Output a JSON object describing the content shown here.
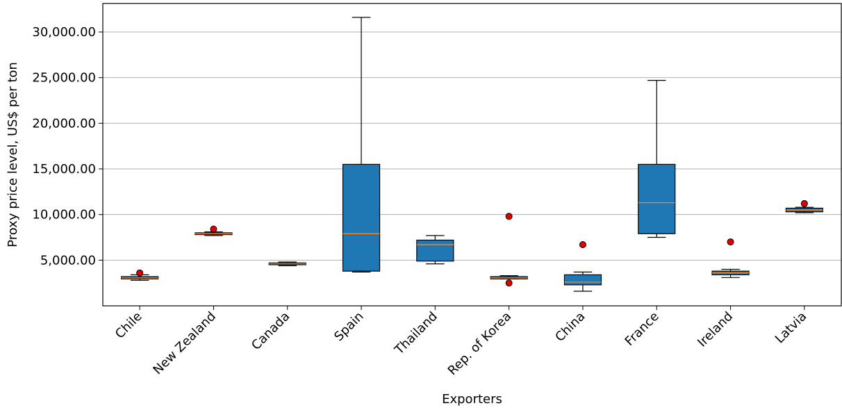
{
  "chart_data": {
    "type": "box",
    "xlabel": "Exporters",
    "ylabel": "Proxy price level, US$ per ton",
    "ylim": [
      0,
      33000
    ],
    "yticks": [
      5000,
      10000,
      15000,
      20000,
      25000,
      30000
    ],
    "ytick_labels": [
      "5,000.00",
      "10,000.00",
      "15,000.00",
      "20,000.00",
      "25,000.00",
      "30,000.00"
    ],
    "grid": "horizontal",
    "box_color": "#1f77b4",
    "median_color": "#ff7f0e",
    "outlier_color": "#e00000",
    "categories": [
      "Chile",
      "New Zealand",
      "Canada",
      "Spain",
      "Thailand",
      "Rep. of Korea",
      "China",
      "France",
      "Ireland",
      "Latvia"
    ],
    "boxes": [
      {
        "name": "Chile",
        "whislo": 2800,
        "q1": 2950,
        "med": 3050,
        "q3": 3200,
        "whishi": 3400,
        "fliers": [
          3600
        ]
      },
      {
        "name": "New Zealand",
        "whislo": 7700,
        "q1": 7800,
        "med": 7900,
        "q3": 8000,
        "whishi": 8100,
        "fliers": [
          8400
        ]
      },
      {
        "name": "Canada",
        "whislo": 4400,
        "q1": 4500,
        "med": 4600,
        "q3": 4700,
        "whishi": 4800,
        "fliers": []
      },
      {
        "name": "Spain",
        "whislo": 3700,
        "q1": 3800,
        "med": 7900,
        "q3": 15500,
        "whishi": 31600,
        "fliers": []
      },
      {
        "name": "Thailand",
        "whislo": 4600,
        "q1": 4900,
        "med": 6700,
        "q3": 7200,
        "whishi": 7700,
        "fliers": []
      },
      {
        "name": "Rep. of Korea",
        "whislo": 2950,
        "q1": 2950,
        "med": 3050,
        "q3": 3200,
        "whishi": 3300,
        "fliers": [
          9800,
          2500
        ]
      },
      {
        "name": "China",
        "whislo": 1600,
        "q1": 2300,
        "med": 2600,
        "q3": 3400,
        "whishi": 3700,
        "fliers": [
          6700
        ]
      },
      {
        "name": "France",
        "whislo": 7500,
        "q1": 7900,
        "med": 11300,
        "q3": 15500,
        "whishi": 24700,
        "fliers": []
      },
      {
        "name": "Ireland",
        "whislo": 3100,
        "q1": 3400,
        "med": 3600,
        "q3": 3800,
        "whishi": 4000,
        "fliers": [
          7000
        ]
      },
      {
        "name": "Latvia",
        "whislo": 10200,
        "q1": 10300,
        "med": 10500,
        "q3": 10700,
        "whishi": 10800,
        "fliers": [
          11200
        ]
      }
    ]
  }
}
